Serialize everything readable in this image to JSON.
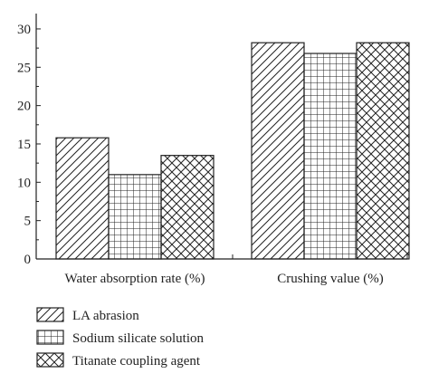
{
  "chart_data": {
    "type": "bar",
    "title": "",
    "xlabel": "",
    "ylabel": "",
    "categories": [
      "Water absorption rate (%)",
      "Crushing value (%)"
    ],
    "series": [
      {
        "name": "LA abrasion",
        "values": [
          15.8,
          28.2
        ],
        "pattern": "diagonal"
      },
      {
        "name": "Sodium silicate solution",
        "values": [
          11.0,
          26.8
        ],
        "pattern": "grid"
      },
      {
        "name": "Titanate coupling agent",
        "values": [
          13.5,
          28.2
        ],
        "pattern": "crosshatch"
      }
    ],
    "ylim": [
      0,
      32
    ],
    "yticks": [
      "0",
      "5",
      "10",
      "15",
      "20",
      "25",
      "30"
    ],
    "grid": false,
    "legend_position": "bottom-left",
    "colors": {
      "stroke": "#222222",
      "fill": "#ffffff"
    }
  }
}
